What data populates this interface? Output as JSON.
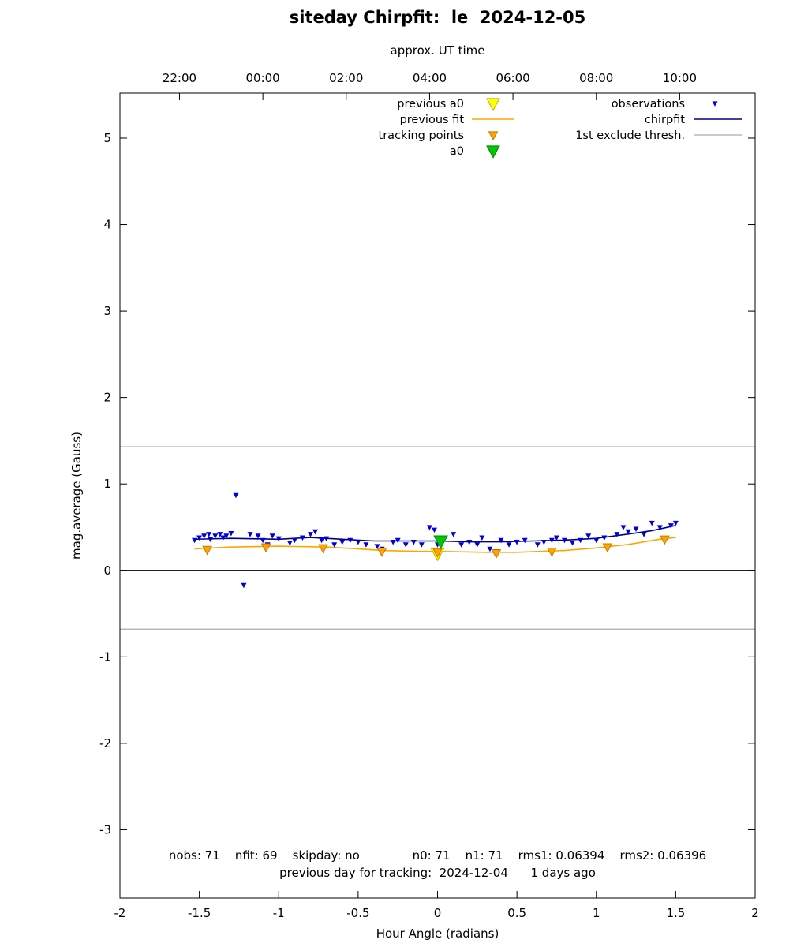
{
  "chart_data": {
    "type": "scatter",
    "title": "siteday Chirpfit:  le  2024-12-05",
    "top_axis": {
      "label": "approx. UT time",
      "ticks": [
        {
          "label": "22:00",
          "x": -1.625
        },
        {
          "label": "00:00",
          "x": -1.1
        },
        {
          "label": "02:00",
          "x": -0.575
        },
        {
          "label": "04:00",
          "x": -0.05
        },
        {
          "label": "06:00",
          "x": 0.475
        },
        {
          "label": "08:00",
          "x": 1.0
        },
        {
          "label": "10:00",
          "x": 1.525
        }
      ]
    },
    "xlabel": "Hour Angle (radians)",
    "ylabel": "mag.average (Gauss)",
    "xlim": [
      -2,
      2
    ],
    "ylim": [
      -3.79,
      5.52
    ],
    "xticks": [
      {
        "v": -2,
        "label": "-2"
      },
      {
        "v": -1.5,
        "label": "-1.5"
      },
      {
        "v": -1,
        "label": "-1"
      },
      {
        "v": -0.5,
        "label": "-0.5"
      },
      {
        "v": 0,
        "label": "0"
      },
      {
        "v": 0.5,
        "label": "0.5"
      },
      {
        "v": 1,
        "label": "1"
      },
      {
        "v": 1.5,
        "label": "1.5"
      },
      {
        "v": 2,
        "label": "2"
      }
    ],
    "yticks": [
      {
        "v": -3,
        "label": "-3"
      },
      {
        "v": -2,
        "label": "-2"
      },
      {
        "v": -1,
        "label": "-1"
      },
      {
        "v": 0,
        "label": "0"
      },
      {
        "v": 1,
        "label": "1"
      },
      {
        "v": 2,
        "label": "2"
      },
      {
        "v": 3,
        "label": "3"
      },
      {
        "v": 4,
        "label": "4"
      },
      {
        "v": 5,
        "label": "5"
      }
    ],
    "zero_line": 0,
    "exclude_thresholds": [
      1.43,
      -0.68
    ],
    "colors": {
      "observations": "#0000dd",
      "chirpfit": "#00008b",
      "previous_fit": "#ffa500",
      "tracking": "#ffa500",
      "a0": "#00c800",
      "previous_a0": "#ffff00",
      "threshold": "#b8b8b8",
      "axis": "#000000"
    },
    "series": [
      {
        "name": "previous fit",
        "type": "line",
        "color": "#ffa500",
        "width": 1.6,
        "points": [
          [
            -1.53,
            0.25
          ],
          [
            -1.3,
            0.27
          ],
          [
            -1.0,
            0.28
          ],
          [
            -0.7,
            0.27
          ],
          [
            -0.5,
            0.25
          ],
          [
            -0.35,
            0.23
          ],
          [
            -0.1,
            0.22
          ],
          [
            0.0,
            0.22
          ],
          [
            0.3,
            0.21
          ],
          [
            0.5,
            0.21
          ],
          [
            0.8,
            0.23
          ],
          [
            1.0,
            0.26
          ],
          [
            1.2,
            0.3
          ],
          [
            1.4,
            0.36
          ],
          [
            1.5,
            0.38
          ]
        ]
      },
      {
        "name": "chirpfit",
        "type": "line",
        "color": "#00008b",
        "width": 1.6,
        "points": [
          [
            -1.53,
            0.36
          ],
          [
            -1.3,
            0.37
          ],
          [
            -1.0,
            0.36
          ],
          [
            -0.8,
            0.38
          ],
          [
            -0.6,
            0.36
          ],
          [
            -0.4,
            0.34
          ],
          [
            -0.2,
            0.34
          ],
          [
            0.0,
            0.34
          ],
          [
            0.2,
            0.33
          ],
          [
            0.4,
            0.33
          ],
          [
            0.6,
            0.34
          ],
          [
            0.8,
            0.35
          ],
          [
            1.0,
            0.37
          ],
          [
            1.2,
            0.42
          ],
          [
            1.35,
            0.46
          ],
          [
            1.5,
            0.52
          ]
        ]
      },
      {
        "name": "observations",
        "type": "scatter",
        "marker": "triangle-down",
        "color": "#0000dd",
        "size": 7,
        "points": [
          [
            -1.53,
            0.35
          ],
          [
            -1.5,
            0.38
          ],
          [
            -1.47,
            0.4
          ],
          [
            -1.44,
            0.42
          ],
          [
            -1.43,
            0.36
          ],
          [
            -1.4,
            0.4
          ],
          [
            -1.37,
            0.42
          ],
          [
            -1.35,
            0.38
          ],
          [
            -1.33,
            0.4
          ],
          [
            -1.3,
            0.43
          ],
          [
            -1.27,
            0.87
          ],
          [
            -1.22,
            -0.17
          ],
          [
            -1.18,
            0.42
          ],
          [
            -1.13,
            0.4
          ],
          [
            -1.1,
            0.35
          ],
          [
            -1.07,
            0.3
          ],
          [
            -1.04,
            0.4
          ],
          [
            -1.0,
            0.37
          ],
          [
            -0.93,
            0.32
          ],
          [
            -0.9,
            0.35
          ],
          [
            -0.85,
            0.38
          ],
          [
            -0.8,
            0.42
          ],
          [
            -0.77,
            0.45
          ],
          [
            -0.73,
            0.35
          ],
          [
            -0.7,
            0.37
          ],
          [
            -0.65,
            0.3
          ],
          [
            -0.6,
            0.33
          ],
          [
            -0.55,
            0.35
          ],
          [
            -0.5,
            0.33
          ],
          [
            -0.45,
            0.3
          ],
          [
            -0.38,
            0.28
          ],
          [
            -0.35,
            0.25
          ],
          [
            -0.28,
            0.33
          ],
          [
            -0.25,
            0.35
          ],
          [
            -0.2,
            0.3
          ],
          [
            -0.15,
            0.33
          ],
          [
            -0.1,
            0.3
          ],
          [
            -0.05,
            0.5
          ],
          [
            -0.02,
            0.47
          ],
          [
            0.0,
            0.3
          ],
          [
            0.03,
            0.33
          ],
          [
            0.1,
            0.42
          ],
          [
            0.15,
            0.3
          ],
          [
            0.2,
            0.33
          ],
          [
            0.25,
            0.3
          ],
          [
            0.28,
            0.38
          ],
          [
            0.33,
            0.25
          ],
          [
            0.37,
            0.22
          ],
          [
            0.4,
            0.35
          ],
          [
            0.45,
            0.3
          ],
          [
            0.5,
            0.33
          ],
          [
            0.55,
            0.35
          ],
          [
            0.63,
            0.3
          ],
          [
            0.67,
            0.33
          ],
          [
            0.72,
            0.35
          ],
          [
            0.75,
            0.38
          ],
          [
            0.8,
            0.35
          ],
          [
            0.85,
            0.32
          ],
          [
            0.9,
            0.35
          ],
          [
            0.95,
            0.4
          ],
          [
            1.0,
            0.35
          ],
          [
            1.05,
            0.38
          ],
          [
            1.13,
            0.42
          ],
          [
            1.17,
            0.5
          ],
          [
            1.2,
            0.45
          ],
          [
            1.25,
            0.48
          ],
          [
            1.3,
            0.42
          ],
          [
            1.35,
            0.55
          ],
          [
            1.4,
            0.5
          ],
          [
            1.47,
            0.52
          ],
          [
            1.5,
            0.55
          ]
        ]
      },
      {
        "name": "previous a0",
        "type": "scatter",
        "marker": "triangle-down",
        "color": "#ffff00",
        "edge": "#b0b000",
        "size": 17,
        "points": [
          [
            0.0,
            0.2
          ]
        ]
      },
      {
        "name": "tracking points",
        "type": "scatter",
        "marker": "triangle-down",
        "color": "#ffa500",
        "edge": "#c87800",
        "size": 11,
        "points": [
          [
            -1.45,
            0.24
          ],
          [
            -1.08,
            0.27
          ],
          [
            -0.72,
            0.26
          ],
          [
            -0.35,
            0.22
          ],
          [
            0.0,
            0.21
          ],
          [
            0.37,
            0.2
          ],
          [
            0.72,
            0.22
          ],
          [
            1.07,
            0.27
          ],
          [
            1.43,
            0.36
          ]
        ]
      },
      {
        "name": "a0",
        "type": "scatter",
        "marker": "triangle-down",
        "color": "#00c800",
        "edge": "#008800",
        "size": 17,
        "points": [
          [
            0.02,
            0.34
          ]
        ]
      }
    ],
    "legend": {
      "columns": [
        {
          "items": [
            {
              "label": "previous a0",
              "swatch": "triangle",
              "color": "#ffff00",
              "edge": "#b0b000",
              "size": 16
            },
            {
              "label": "previous fit",
              "swatch": "line",
              "color": "#ffa500"
            },
            {
              "label": "tracking points",
              "swatch": "triangle",
              "color": "#ffa500",
              "edge": "#c87800",
              "size": 11
            },
            {
              "label": "a0",
              "swatch": "triangle",
              "color": "#00c800",
              "edge": "#008800",
              "size": 16
            }
          ]
        },
        {
          "items": [
            {
              "label": "observations",
              "swatch": "triangle",
              "color": "#0000dd",
              "size": 7
            },
            {
              "label": "chirpfit",
              "swatch": "line",
              "color": "#00008b"
            },
            {
              "label": "1st exclude thresh.",
              "swatch": "line",
              "color": "#b8b8b8"
            }
          ]
        }
      ]
    },
    "stats": {
      "line1": "nobs: 71    nfit: 69    skipday: no              n0: 71    n1: 71    rms1: 0.06394    rms2: 0.06396",
      "line2": "previous day for tracking:  2024-12-04      1 days ago"
    }
  }
}
